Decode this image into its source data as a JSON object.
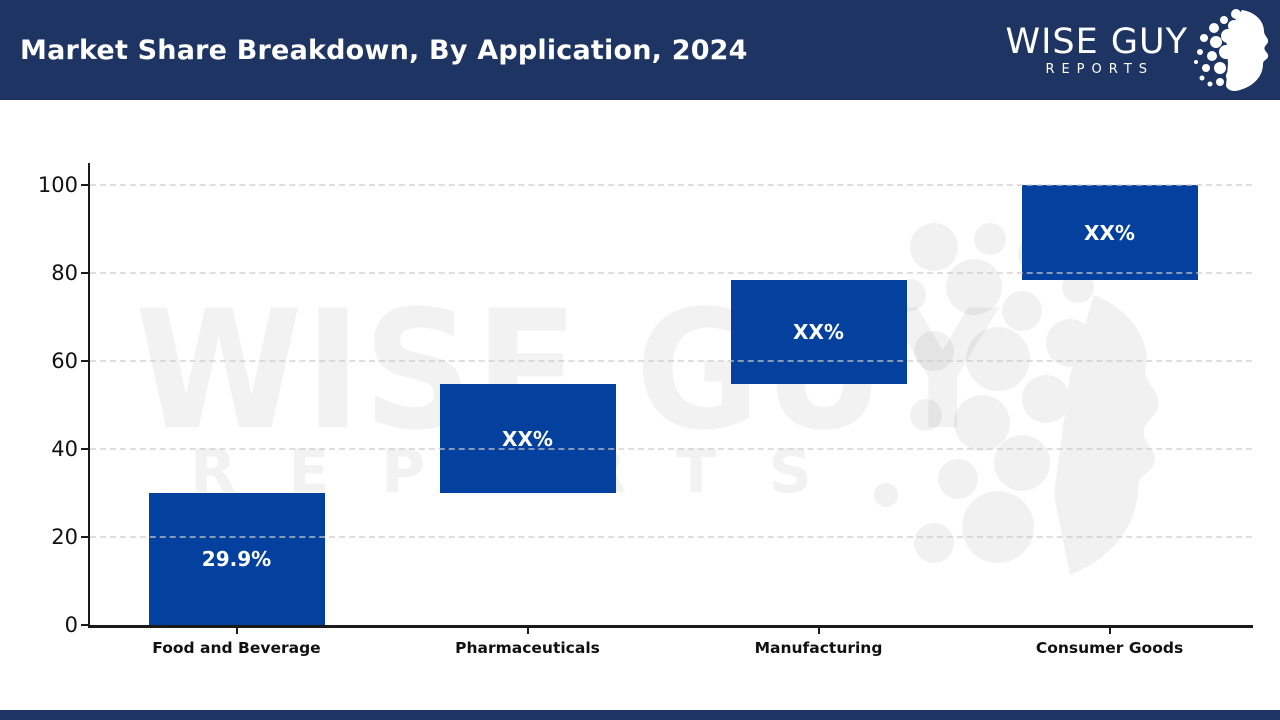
{
  "header": {
    "title": "Market Share Breakdown, By Application, 2024",
    "bg_color": "#1e3462",
    "logo": {
      "line1": "WISE GUY",
      "line2": "REPORTS"
    }
  },
  "footer": {
    "bg_color": "#1e3462"
  },
  "watermark": {
    "line1": "WISE GUY",
    "line2": "REPORTS"
  },
  "chart_data": {
    "type": "bar",
    "subtype": "waterfall-stacked-breakdown",
    "title": "Market Share Breakdown, By Application, 2024",
    "categories": [
      "Food and Beverage",
      "Pharmaceuticals",
      "Manufacturing",
      "Consumer Goods"
    ],
    "segments": [
      {
        "category": "Food and Beverage",
        "start": 0,
        "end": 29.9,
        "label": "29.9%"
      },
      {
        "category": "Pharmaceuticals",
        "start": 29.9,
        "end": 54.7,
        "label": "XX%"
      },
      {
        "category": "Manufacturing",
        "start": 54.7,
        "end": 78.4,
        "label": "XX%"
      },
      {
        "category": "Consumer Goods",
        "start": 78.4,
        "end": 100,
        "label": "XX%"
      }
    ],
    "y_ticks": [
      0,
      20,
      40,
      60,
      80,
      100
    ],
    "ylim": [
      0,
      105
    ],
    "xlabel": "",
    "ylabel": "",
    "bar_color": "#04409d",
    "grid": "horizontal-dashed",
    "legend": "none"
  }
}
